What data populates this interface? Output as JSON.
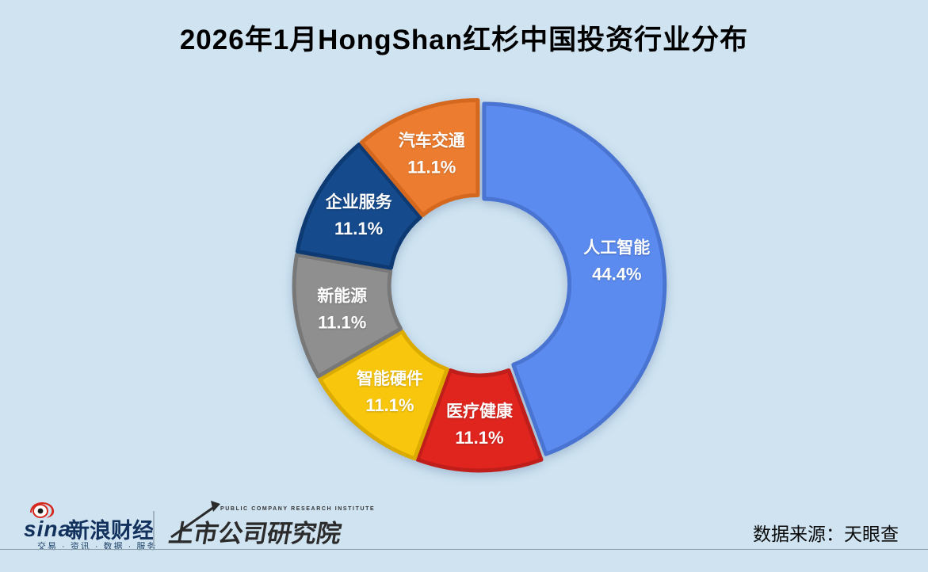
{
  "title": "2026年1月HongShan红杉中国投资行业分布",
  "chart_data": {
    "type": "pie",
    "subtype": "donut",
    "title": "2026年1月HongShan红杉中国投资行业分布",
    "legend_position": "none",
    "start_angle_deg": 0,
    "direction": "clockwise",
    "categories": [
      "人工智能",
      "医疗健康",
      "智能硬件",
      "新能源",
      "企业服务",
      "汽车交通"
    ],
    "values": [
      44.4,
      11.1,
      11.1,
      11.1,
      11.1,
      11.1
    ],
    "value_labels": [
      "44.4%",
      "11.1%",
      "11.1%",
      "11.1%",
      "11.1%",
      "11.1%"
    ],
    "colors": [
      "#5b8bee",
      "#e0251f",
      "#f8c70d",
      "#8f8f8f",
      "#154a8c",
      "#ec7d30"
    ],
    "stroke_colors": [
      "#4a74d2",
      "#bf1e1b",
      "#dcab00",
      "#787878",
      "#0e3a73",
      "#d5681f"
    ]
  },
  "footer": {
    "sina_logo_text": "sina",
    "sina_brand": "新浪财经",
    "sina_tagline": "交易 · 资讯 · 数据 · 服务",
    "institute_subtitle": "PUBLIC COMPANY RESEARCH INSTITUTE",
    "institute_name": "上市公司研究院",
    "source": "数据来源：天眼查"
  },
  "colors": {
    "background": "#cfe3f1",
    "title_text": "#000000",
    "slice_label_text": "#ffffff",
    "sina_navy": "#12315c",
    "sina_red": "#d6281e",
    "institute_ink": "#2b2b2b",
    "footer_rule": "#8fa0ad"
  }
}
